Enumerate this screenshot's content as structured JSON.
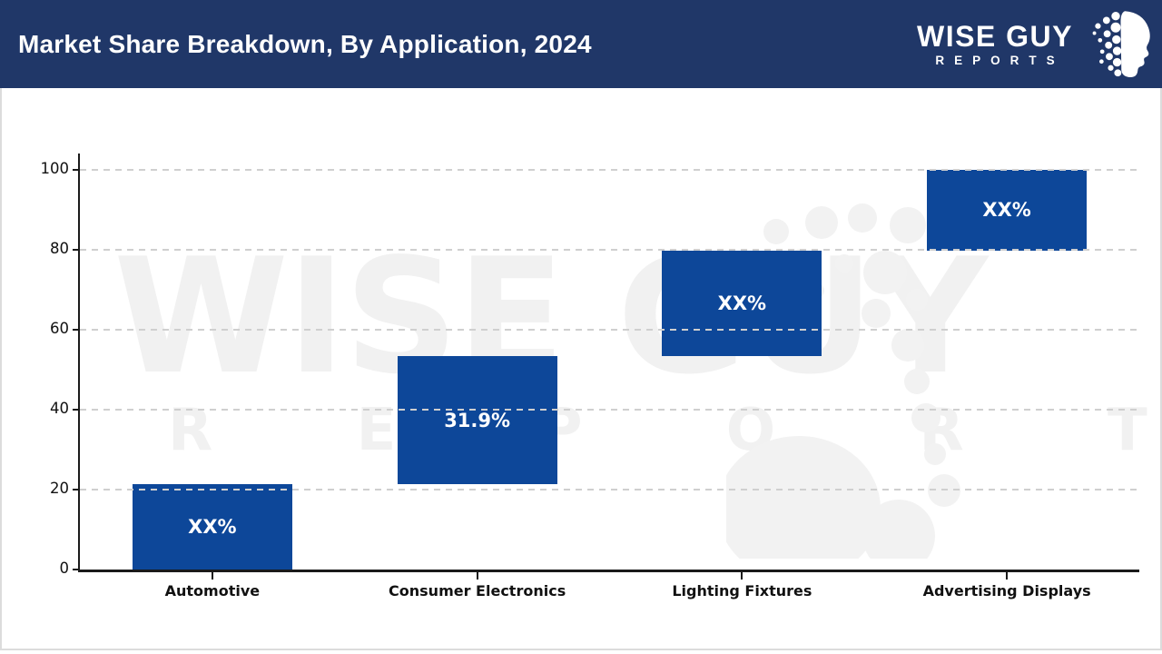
{
  "header": {
    "title": "Market Share Breakdown, By Application, 2024",
    "logo": {
      "wordmark": "WISE GUY",
      "subtext": "REPORTS"
    }
  },
  "watermark": {
    "wordmark": "WISE GUY",
    "subtext": "R E P O R T S"
  },
  "colors": {
    "header_bg": "#203768",
    "bar": "#0d4799",
    "bar_label": "#ffffff",
    "axis": "#1a1a1a",
    "grid": "#cfcfcf",
    "watermark": "#f1f1f1",
    "title_text": "#ffffff"
  },
  "chart_data": {
    "type": "bar",
    "subtype": "waterfall",
    "title": "Market Share Breakdown, By Application, 2024",
    "xlabel": "",
    "ylabel": "",
    "categories": [
      "Automotive",
      "Consumer Electronics",
      "Lighting Fixtures",
      "Advertising Displays"
    ],
    "segments": [
      {
        "category": "Automotive",
        "start": 0,
        "end": 21.4,
        "label": "XX%"
      },
      {
        "category": "Consumer Electronics",
        "start": 21.4,
        "end": 53.3,
        "label": "31.9%"
      },
      {
        "category": "Lighting Fixtures",
        "start": 53.3,
        "end": 79.8,
        "label": "XX%"
      },
      {
        "category": "Advertising Displays",
        "start": 79.8,
        "end": 100,
        "label": "XX%"
      }
    ],
    "ylim": [
      0,
      100
    ],
    "yticks": [
      0,
      20,
      40,
      60,
      80,
      100
    ],
    "grid": "horizontal-dashed",
    "legend": "none"
  }
}
